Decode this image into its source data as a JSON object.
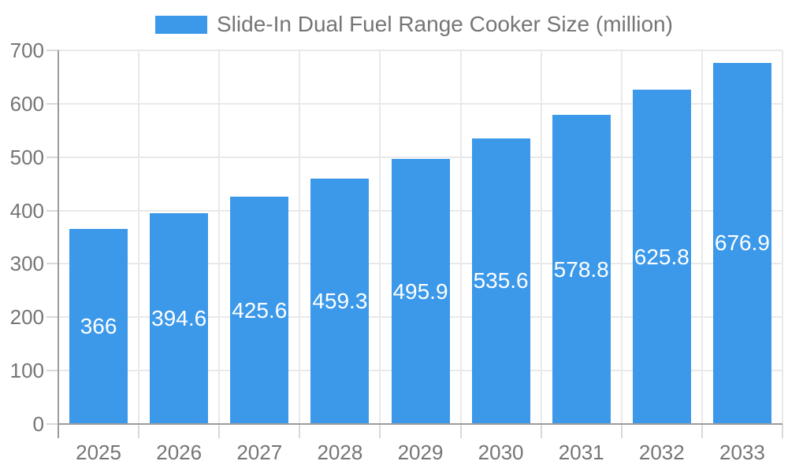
{
  "chart_data": {
    "type": "bar",
    "title": "Slide-In Dual Fuel Range Cooker Size (million)",
    "legend_position": "top",
    "categories": [
      "2025",
      "2026",
      "2027",
      "2028",
      "2029",
      "2030",
      "2031",
      "2032",
      "2033"
    ],
    "series": [
      {
        "name": "Slide-In Dual Fuel Range Cooker Size (million)",
        "values": [
          366,
          394.6,
          425.6,
          459.3,
          495.9,
          535.6,
          578.8,
          625.8,
          676.9
        ],
        "labels": [
          "366",
          "394.6",
          "425.6",
          "459.3",
          "495.9",
          "535.6",
          "578.8",
          "625.8",
          "676.9"
        ]
      }
    ],
    "xlabel": "",
    "ylabel": "",
    "ylim": [
      0,
      700
    ],
    "ytick_step": 100,
    "ytick_labels": [
      "0",
      "100",
      "200",
      "300",
      "400",
      "500",
      "600",
      "700"
    ],
    "grid": true,
    "colors": {
      "bar": "#3c99ea",
      "axis_line": "#9c9c9c",
      "grid_line": "#e9e9e9",
      "tick_line": "#d9d9d9",
      "text": "#757575",
      "bar_label": "#ffffff",
      "background": "#ffffff"
    }
  }
}
